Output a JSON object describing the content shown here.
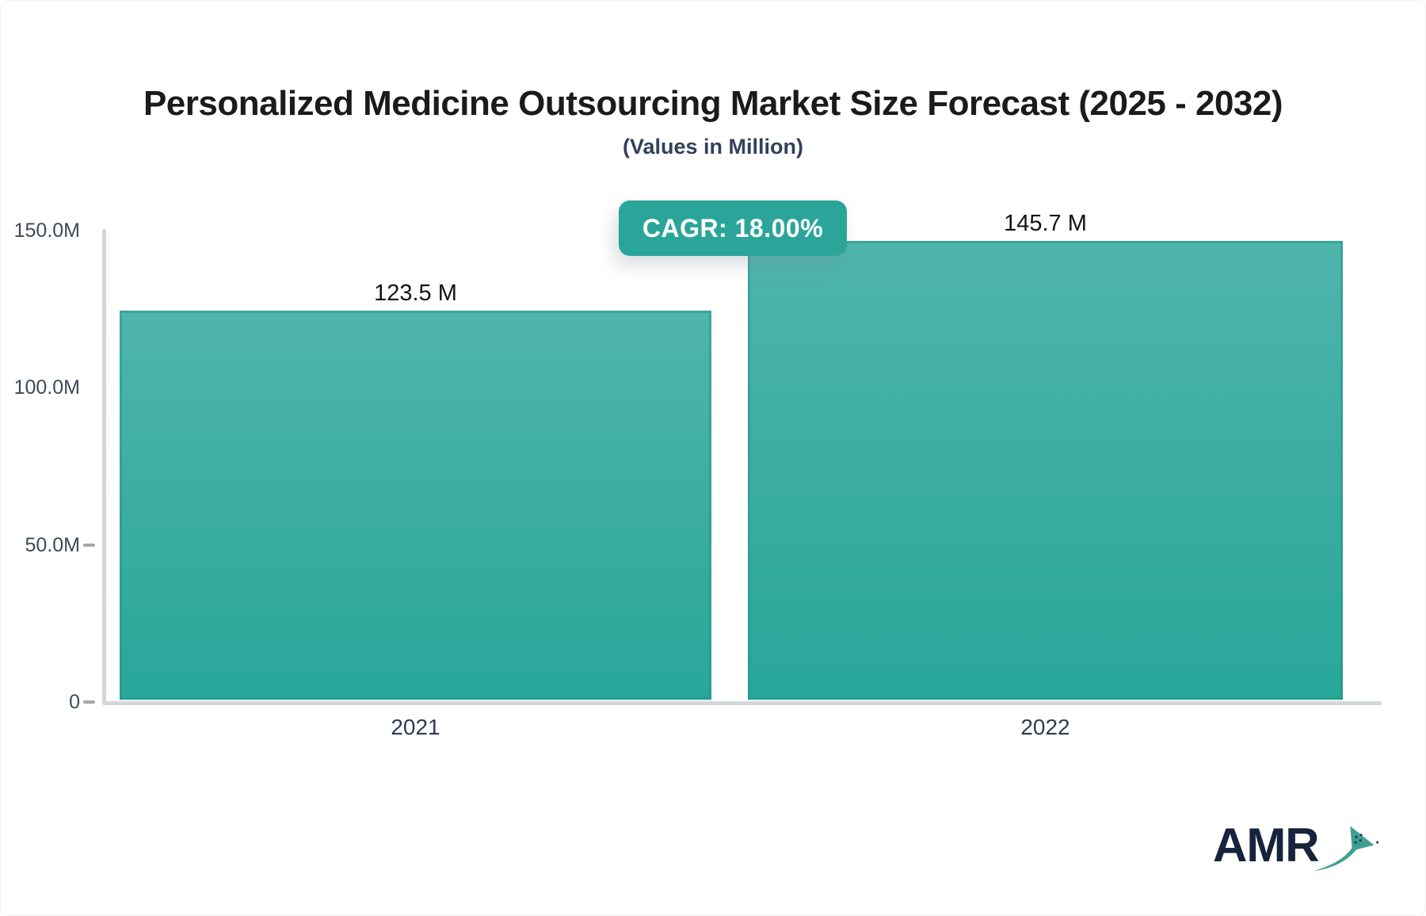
{
  "title": "Personalized Medicine Outsourcing Market Size Forecast (2025 - 2032)",
  "subtitle": "(Values in Million)",
  "badge": {
    "label": "CAGR: 18.00%"
  },
  "logo": {
    "text": "AMR",
    "arrow_icon": "growth-arrow-icon"
  },
  "colors": {
    "bar_top": "#4fb5ac",
    "bar_bottom": "#28a79a",
    "badge_bg": "#2ba59a",
    "axis_line": "#d3d7da",
    "title_text": "#1b1b1b",
    "subtitle_text": "#32415a",
    "tick_text": "#3e4a59",
    "category_text": "#2c3c52",
    "logo_text": "#16233c",
    "logo_arrow": "#3e9e92"
  },
  "chart_data": {
    "type": "bar",
    "title": "Personalized Medicine Outsourcing Market Size Forecast (2025 - 2032)",
    "subtitle": "(Values in Million)",
    "unit": "Million",
    "cagr_percent": 18.0,
    "categories": [
      "2021",
      "2022"
    ],
    "values": [
      123.5,
      145.7
    ],
    "value_labels": [
      "123.5 M",
      "145.7 M"
    ],
    "ylim": [
      0,
      150
    ],
    "yticks": [
      "150.0M",
      "100.0M",
      "50.0M",
      "0"
    ],
    "ytick_values": [
      150,
      100,
      50,
      0
    ],
    "grid": "off",
    "legend": "none"
  }
}
